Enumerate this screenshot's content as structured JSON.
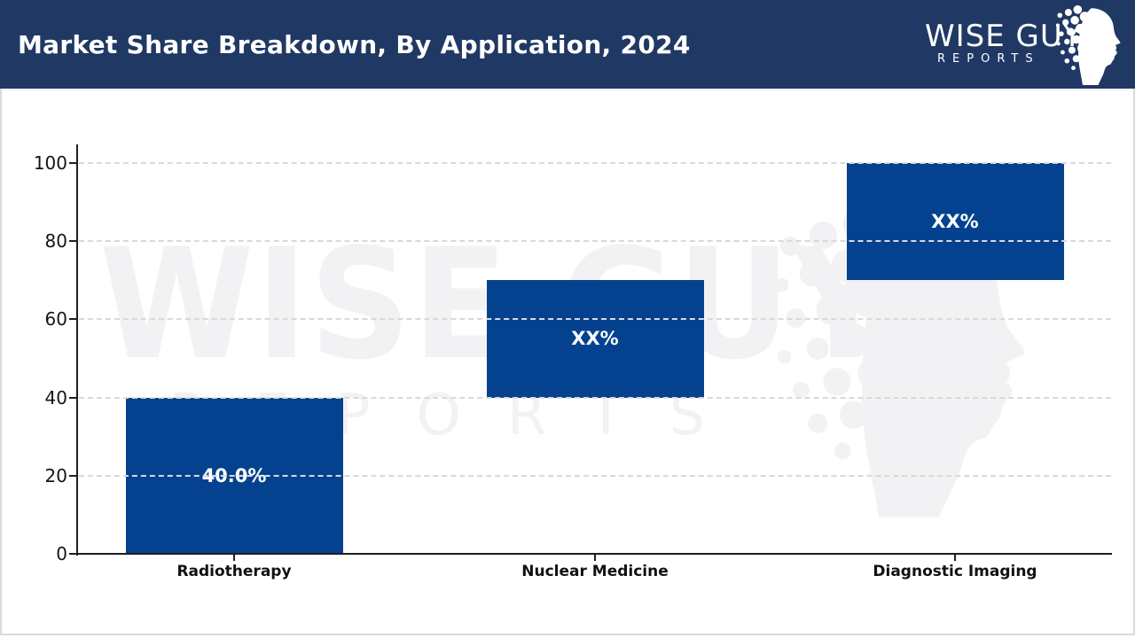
{
  "header": {
    "title": "Market Share Breakdown, By Application, 2024",
    "logo": {
      "line1": "WISE GUY",
      "line2": "REPORTS"
    }
  },
  "watermark": {
    "line1": "WISE GUY",
    "line2": "REPORTS"
  },
  "chart_data": {
    "type": "bar",
    "subtype": "floating-range-bars (waterfall style market share)",
    "title": "Market Share Breakdown, By Application, 2024",
    "categories": [
      "Radiotherapy",
      "Nuclear Medicine",
      "Diagnostic Imaging"
    ],
    "bars": [
      {
        "category": "Radiotherapy",
        "range": [
          0,
          40
        ],
        "label": "40.0%"
      },
      {
        "category": "Nuclear Medicine",
        "range": [
          40,
          70
        ],
        "label": "XX%"
      },
      {
        "category": "Diagnostic Imaging",
        "range": [
          70,
          100
        ],
        "label": "XX%"
      }
    ],
    "yticks": [
      0,
      20,
      40,
      60,
      80,
      100
    ],
    "ylim": [
      0,
      105
    ],
    "xlabel": "",
    "ylabel": "",
    "grid": "horizontal dashed lines drawn above bars",
    "legend": "none"
  },
  "colors": {
    "header_bg": "#203864",
    "bar": "#04428f",
    "grid": "#d9d9d9",
    "axis": "#1f1f1f",
    "watermark": "#f2f2f4",
    "bar_label": "#ffffff",
    "frame": "#dadada"
  }
}
